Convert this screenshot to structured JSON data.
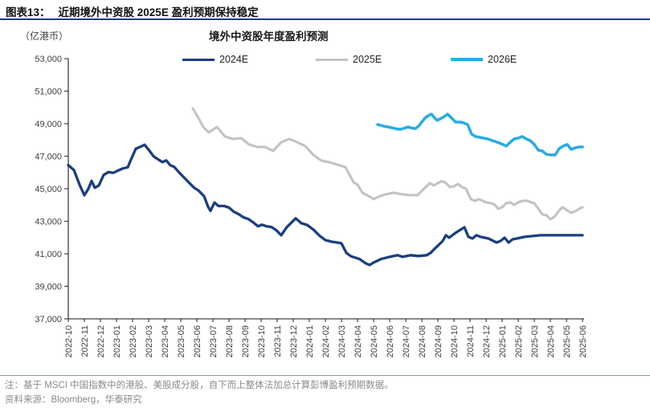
{
  "figure": {
    "label": "图表13：",
    "title": "近期境外中资股 2025E 盈利预期保持稳定"
  },
  "chart": {
    "unit_label": "（亿港币）",
    "title": "境外中资股年度盈利预测"
  },
  "notes": {
    "note": "注：基于 MSCI 中国指数中的港股、美股成分股，自下而上整体法加总计算彭博盈利预期数据。",
    "source": "资料来源：Bloomberg，华泰研究"
  },
  "chart_data": {
    "type": "line",
    "title": "境外中资股年度盈利预测",
    "unit": "亿港币",
    "legend_position": "top",
    "grid": false,
    "axis_color": "#404040",
    "ylim": [
      37000,
      53000
    ],
    "y_ticks": [
      53000,
      51000,
      49000,
      47000,
      45000,
      43000,
      41000,
      39000,
      37000
    ],
    "x_unit": "months_from_2022-10",
    "x_labels": [
      "2022-10",
      "2022-11",
      "2022-12",
      "2023-01",
      "2023-02",
      "2023-03",
      "2023-04",
      "2023-05",
      "2023-06",
      "2023-07",
      "2023-08",
      "2023-09",
      "2023-10",
      "2023-11",
      "2023-12",
      "2024-01",
      "2024-02",
      "2024-03",
      "2024-04",
      "2024-05",
      "2024-06",
      "2024-07",
      "2024-08",
      "2024-09",
      "2024-10",
      "2024-11",
      "2024-12",
      "2025-01",
      "2025-02",
      "2025-03",
      "2025-04",
      "2025-05",
      "2025-06"
    ],
    "series": [
      {
        "name": "2024E",
        "color": "#1a3f7e",
        "stroke_width": 3.3,
        "points": [
          [
            0,
            46450
          ],
          [
            0.35,
            46150
          ],
          [
            0.7,
            45250
          ],
          [
            1.0,
            44600
          ],
          [
            1.25,
            45000
          ],
          [
            1.45,
            45480
          ],
          [
            1.65,
            45060
          ],
          [
            1.9,
            45200
          ],
          [
            2.2,
            45850
          ],
          [
            2.5,
            46020
          ],
          [
            2.8,
            45980
          ],
          [
            3.1,
            46120
          ],
          [
            3.4,
            46250
          ],
          [
            3.7,
            46320
          ],
          [
            3.95,
            46900
          ],
          [
            4.2,
            47460
          ],
          [
            4.5,
            47590
          ],
          [
            4.75,
            47700
          ],
          [
            5.0,
            47400
          ],
          [
            5.3,
            47000
          ],
          [
            5.6,
            46800
          ],
          [
            5.85,
            46640
          ],
          [
            6.1,
            46740
          ],
          [
            6.35,
            46440
          ],
          [
            6.6,
            46340
          ],
          [
            6.9,
            46000
          ],
          [
            7.2,
            45690
          ],
          [
            7.5,
            45390
          ],
          [
            7.8,
            45090
          ],
          [
            8.1,
            44890
          ],
          [
            8.45,
            44540
          ],
          [
            8.7,
            43890
          ],
          [
            8.85,
            43640
          ],
          [
            9.1,
            44150
          ],
          [
            9.35,
            43940
          ],
          [
            9.7,
            43940
          ],
          [
            10.0,
            43840
          ],
          [
            10.3,
            43590
          ],
          [
            10.6,
            43440
          ],
          [
            10.9,
            43240
          ],
          [
            11.2,
            43140
          ],
          [
            11.5,
            42940
          ],
          [
            11.8,
            42690
          ],
          [
            12.05,
            42790
          ],
          [
            12.35,
            42690
          ],
          [
            12.65,
            42640
          ],
          [
            12.95,
            42440
          ],
          [
            13.25,
            42140
          ],
          [
            13.6,
            42640
          ],
          [
            14.15,
            43180
          ],
          [
            14.5,
            42880
          ],
          [
            14.85,
            42780
          ],
          [
            15.25,
            42490
          ],
          [
            15.6,
            42140
          ],
          [
            16.0,
            41840
          ],
          [
            16.4,
            41740
          ],
          [
            16.75,
            41690
          ],
          [
            17.0,
            41640
          ],
          [
            17.3,
            41060
          ],
          [
            17.6,
            40840
          ],
          [
            18.1,
            40690
          ],
          [
            18.5,
            40420
          ],
          [
            18.75,
            40310
          ],
          [
            19.0,
            40460
          ],
          [
            19.5,
            40690
          ],
          [
            20.0,
            40810
          ],
          [
            20.5,
            40910
          ],
          [
            20.8,
            40810
          ],
          [
            21.3,
            40910
          ],
          [
            21.8,
            40860
          ],
          [
            22.3,
            40910
          ],
          [
            22.55,
            41060
          ],
          [
            22.8,
            41310
          ],
          [
            23.05,
            41550
          ],
          [
            23.3,
            41790
          ],
          [
            23.5,
            42140
          ],
          [
            23.7,
            41990
          ],
          [
            24.1,
            42290
          ],
          [
            24.65,
            42630
          ],
          [
            24.9,
            42040
          ],
          [
            25.15,
            41940
          ],
          [
            25.4,
            42140
          ],
          [
            25.65,
            42040
          ],
          [
            26.15,
            41940
          ],
          [
            26.65,
            41690
          ],
          [
            26.9,
            41790
          ],
          [
            27.15,
            41990
          ],
          [
            27.4,
            41690
          ],
          [
            27.65,
            41890
          ],
          [
            27.9,
            41940
          ],
          [
            28.4,
            42040
          ],
          [
            28.9,
            42090
          ],
          [
            29.4,
            42140
          ],
          [
            30.2,
            42140
          ],
          [
            31.1,
            42140
          ],
          [
            32,
            42140
          ]
        ]
      },
      {
        "name": "2025E",
        "color": "#c3c3c3",
        "stroke_width": 3.1,
        "points": [
          [
            7.75,
            49940
          ],
          [
            8.1,
            49350
          ],
          [
            8.4,
            48800
          ],
          [
            8.75,
            48460
          ],
          [
            9.25,
            48800
          ],
          [
            9.75,
            48210
          ],
          [
            10.25,
            48060
          ],
          [
            10.75,
            48110
          ],
          [
            11.25,
            47720
          ],
          [
            11.75,
            47570
          ],
          [
            12.25,
            47570
          ],
          [
            12.75,
            47320
          ],
          [
            13.25,
            47860
          ],
          [
            13.75,
            48060
          ],
          [
            14.25,
            47860
          ],
          [
            14.75,
            47620
          ],
          [
            15.25,
            47080
          ],
          [
            15.75,
            46730
          ],
          [
            16.25,
            46630
          ],
          [
            16.75,
            46480
          ],
          [
            17.25,
            46330
          ],
          [
            17.75,
            45400
          ],
          [
            18.0,
            45250
          ],
          [
            18.3,
            44760
          ],
          [
            18.75,
            44510
          ],
          [
            19.0,
            44360
          ],
          [
            19.3,
            44510
          ],
          [
            19.75,
            44660
          ],
          [
            20.25,
            44760
          ],
          [
            20.75,
            44660
          ],
          [
            21.25,
            44610
          ],
          [
            21.75,
            44610
          ],
          [
            22.0,
            44860
          ],
          [
            22.25,
            45110
          ],
          [
            22.5,
            45350
          ],
          [
            22.75,
            45200
          ],
          [
            23.0,
            45350
          ],
          [
            23.25,
            45460
          ],
          [
            23.5,
            45350
          ],
          [
            23.75,
            45100
          ],
          [
            24.0,
            45150
          ],
          [
            24.25,
            45300
          ],
          [
            24.5,
            45100
          ],
          [
            24.75,
            45000
          ],
          [
            25.05,
            44360
          ],
          [
            25.3,
            44260
          ],
          [
            25.55,
            44360
          ],
          [
            26.0,
            44160
          ],
          [
            26.3,
            44110
          ],
          [
            26.55,
            44010
          ],
          [
            26.75,
            43770
          ],
          [
            27.0,
            43860
          ],
          [
            27.25,
            44110
          ],
          [
            27.5,
            44160
          ],
          [
            27.75,
            44010
          ],
          [
            28.0,
            44160
          ],
          [
            28.3,
            44260
          ],
          [
            28.55,
            44260
          ],
          [
            28.8,
            44160
          ],
          [
            29.0,
            44110
          ],
          [
            29.25,
            43770
          ],
          [
            29.5,
            43420
          ],
          [
            29.75,
            43370
          ],
          [
            30.0,
            43120
          ],
          [
            30.25,
            43270
          ],
          [
            30.55,
            43670
          ],
          [
            30.75,
            43860
          ],
          [
            31.05,
            43670
          ],
          [
            31.3,
            43520
          ],
          [
            31.55,
            43620
          ],
          [
            31.8,
            43770
          ],
          [
            32,
            43860
          ]
        ]
      },
      {
        "name": "2026E",
        "color": "#29abe2",
        "stroke_width": 3.5,
        "points": [
          [
            19.25,
            48950
          ],
          [
            19.6,
            48850
          ],
          [
            20.0,
            48780
          ],
          [
            20.35,
            48700
          ],
          [
            20.65,
            48650
          ],
          [
            20.9,
            48720
          ],
          [
            21.15,
            48800
          ],
          [
            21.4,
            48730
          ],
          [
            21.6,
            48700
          ],
          [
            21.8,
            48850
          ],
          [
            22.0,
            49100
          ],
          [
            22.2,
            49350
          ],
          [
            22.4,
            49490
          ],
          [
            22.6,
            49590
          ],
          [
            22.8,
            49350
          ],
          [
            22.95,
            49200
          ],
          [
            23.15,
            49300
          ],
          [
            23.4,
            49440
          ],
          [
            23.6,
            49590
          ],
          [
            23.85,
            49350
          ],
          [
            24.1,
            49100
          ],
          [
            24.4,
            49100
          ],
          [
            24.6,
            49050
          ],
          [
            24.85,
            48950
          ],
          [
            25.1,
            48360
          ],
          [
            25.35,
            48210
          ],
          [
            25.6,
            48160
          ],
          [
            25.85,
            48110
          ],
          [
            26.1,
            48060
          ],
          [
            26.4,
            47960
          ],
          [
            26.7,
            47860
          ],
          [
            27.0,
            47740
          ],
          [
            27.25,
            47620
          ],
          [
            27.5,
            47860
          ],
          [
            27.75,
            48060
          ],
          [
            28.0,
            48110
          ],
          [
            28.25,
            48210
          ],
          [
            28.5,
            48060
          ],
          [
            28.75,
            47960
          ],
          [
            29.0,
            47720
          ],
          [
            29.25,
            47370
          ],
          [
            29.5,
            47320
          ],
          [
            29.75,
            47120
          ],
          [
            30.0,
            47080
          ],
          [
            30.3,
            47080
          ],
          [
            30.55,
            47470
          ],
          [
            30.8,
            47620
          ],
          [
            31.05,
            47720
          ],
          [
            31.3,
            47420
          ],
          [
            31.55,
            47520
          ],
          [
            31.8,
            47570
          ],
          [
            32,
            47570
          ]
        ]
      }
    ]
  }
}
